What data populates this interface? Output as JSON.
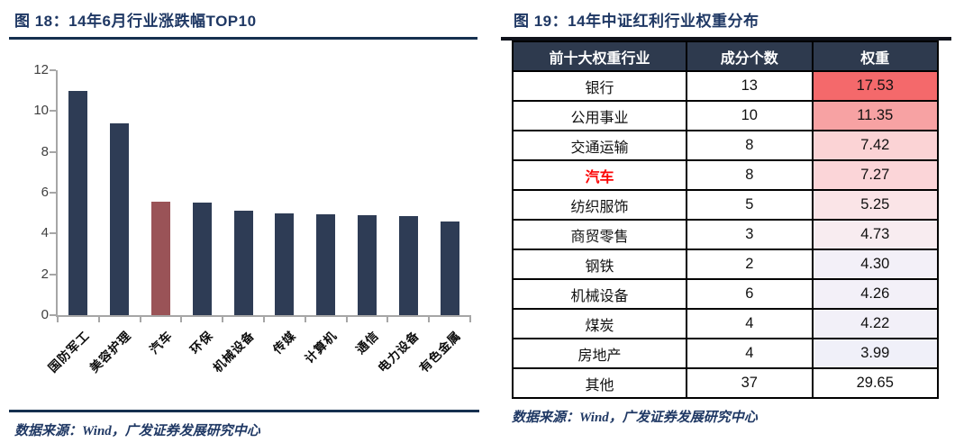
{
  "left_panel": {
    "title": "图 18：14年6月行业涨跌幅TOP10",
    "source": "数据来源：Wind，广发证券发展研究中心"
  },
  "right_panel": {
    "title": "图 19：14年中证红利行业权重分布",
    "source": "数据来源：Wind，广发证券发展研究中心"
  },
  "colors": {
    "title_navy": "#1f3864",
    "rule_navy": "#16304f",
    "bar_navy": "#2e3c55",
    "bar_highlight_red": "#9a5357",
    "table_header_bg": "#2e3a4e",
    "table_header_text": "#ffffff",
    "highlight_text_red": "#fb0606",
    "axis_gray": "#a6a6a6"
  },
  "chart_data": [
    {
      "type": "bar",
      "title": "14年6月行业涨跌幅TOP10",
      "categories": [
        "国防军工",
        "美容护理",
        "汽车",
        "环保",
        "机械设备",
        "传媒",
        "计算机",
        "通信",
        "电力设备",
        "有色金属"
      ],
      "values": [
        11.0,
        9.4,
        5.55,
        5.5,
        5.1,
        5.0,
        4.95,
        4.9,
        4.85,
        4.6
      ],
      "highlight_index": 2,
      "bar_color": "#2e3c55",
      "highlight_color": "#9a5357",
      "xlabel": "",
      "ylabel": "",
      "ylim": [
        0,
        12
      ],
      "yticks": [
        0,
        2,
        4,
        6,
        8,
        10,
        12
      ],
      "grid": false,
      "legend": "none"
    },
    {
      "type": "table",
      "title": "14年中证红利行业权重分布",
      "columns": [
        "前十大权重行业",
        "成分个数",
        "权重"
      ],
      "rows": [
        {
          "industry": "银行",
          "count": "13",
          "weight": "17.53",
          "weight_bg": "#f4696b",
          "highlight": false
        },
        {
          "industry": "公用事业",
          "count": "10",
          "weight": "11.35",
          "weight_bg": "#f7a2a3",
          "highlight": false
        },
        {
          "industry": "交通运输",
          "count": "8",
          "weight": "7.42",
          "weight_bg": "#fbd3d5",
          "highlight": false
        },
        {
          "industry": "汽车",
          "count": "8",
          "weight": "7.27",
          "weight_bg": "#fbd5d8",
          "highlight": true
        },
        {
          "industry": "纺织服饰",
          "count": "5",
          "weight": "5.25",
          "weight_bg": "#fae4e7",
          "highlight": false
        },
        {
          "industry": "商贸零售",
          "count": "3",
          "weight": "4.73",
          "weight_bg": "#f8ecf0",
          "highlight": false
        },
        {
          "industry": "钢铁",
          "count": "2",
          "weight": "4.30",
          "weight_bg": "#f3f0f8",
          "highlight": false
        },
        {
          "industry": "机械设备",
          "count": "6",
          "weight": "4.26",
          "weight_bg": "#f3f0f8",
          "highlight": false
        },
        {
          "industry": "煤炭",
          "count": "4",
          "weight": "4.22",
          "weight_bg": "#f2f0f8",
          "highlight": false
        },
        {
          "industry": "房地产",
          "count": "4",
          "weight": "3.99",
          "weight_bg": "#f0f0f9",
          "highlight": false
        },
        {
          "industry": "其他",
          "count": "37",
          "weight": "29.65",
          "weight_bg": "#ffffff",
          "highlight": false
        }
      ]
    }
  ]
}
